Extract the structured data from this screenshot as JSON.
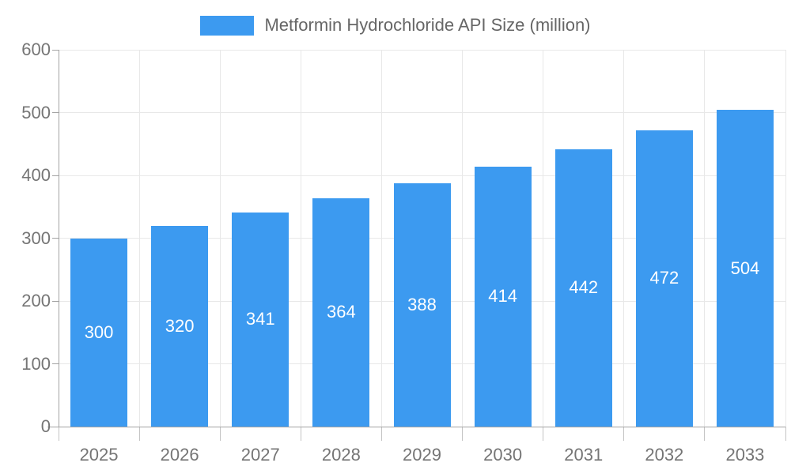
{
  "legend": {
    "label": "Metformin Hydrochloride API Size (million)"
  },
  "chart_data": {
    "type": "bar",
    "title": "Metformin Hydrochloride API Size (million)",
    "categories": [
      "2025",
      "2026",
      "2027",
      "2028",
      "2029",
      "2030",
      "2031",
      "2032",
      "2033"
    ],
    "values": [
      300,
      320,
      341,
      364,
      388,
      414,
      442,
      472,
      504
    ],
    "series": [
      {
        "name": "Metformin Hydrochloride API Size (million)",
        "values": [
          300,
          320,
          341,
          364,
          388,
          414,
          442,
          472,
          504
        ]
      }
    ],
    "xlabel": "",
    "ylabel": "",
    "ylim": [
      0,
      600
    ],
    "yticks": [
      0,
      100,
      200,
      300,
      400,
      500,
      600
    ],
    "grid": true,
    "legend_position": "top",
    "value_labels": "centered-inside-bars"
  },
  "colors": {
    "bar": "#3C9AF0",
    "grid": "#E8E8E8",
    "axis": "#A3A3A3",
    "tick": "#C4C4C4",
    "axis_label": "#757575",
    "legend_text": "#666666",
    "value_label": "#FFFFFF",
    "background": "#FFFFFF"
  }
}
